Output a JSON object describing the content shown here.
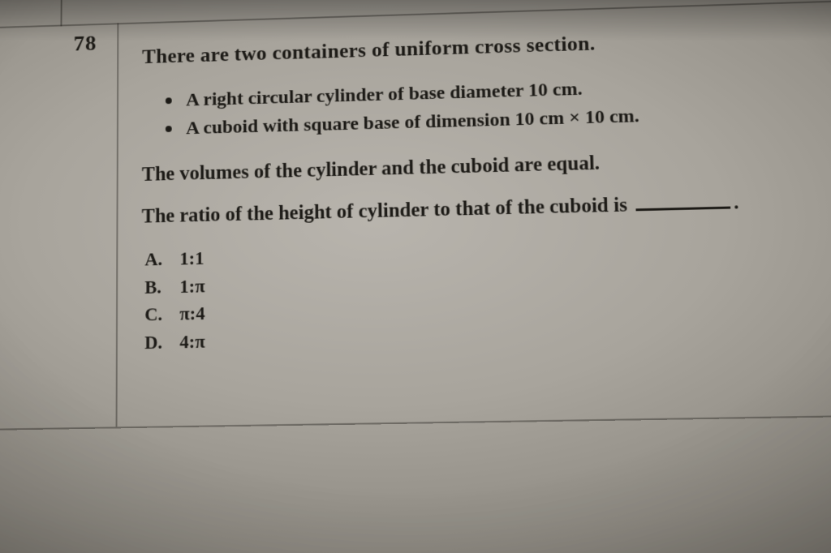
{
  "question": {
    "number": "78",
    "stem": "There are two containers of uniform cross section.",
    "bullets": [
      "A right circular cylinder of base diameter 10 cm.",
      "A cuboid with square base of dimension 10 cm × 10 cm."
    ],
    "para1": "The volumes of the cylinder and the cuboid are equal.",
    "para2_pre": "The ratio of the height of cylinder to that of the cuboid is",
    "para2_post": ".",
    "options": [
      {
        "label": "A.",
        "text": "1:1"
      },
      {
        "label": "B.",
        "text": "1:π"
      },
      {
        "label": "C.",
        "text": "π:4"
      },
      {
        "label": "D.",
        "text": "4:π"
      }
    ]
  },
  "style": {
    "text_color": "#1c1a16",
    "border_color": "#2b2924",
    "stem_fontsize": 26,
    "bullet_fontsize": 24,
    "para_fontsize": 25,
    "option_fontsize": 23
  }
}
